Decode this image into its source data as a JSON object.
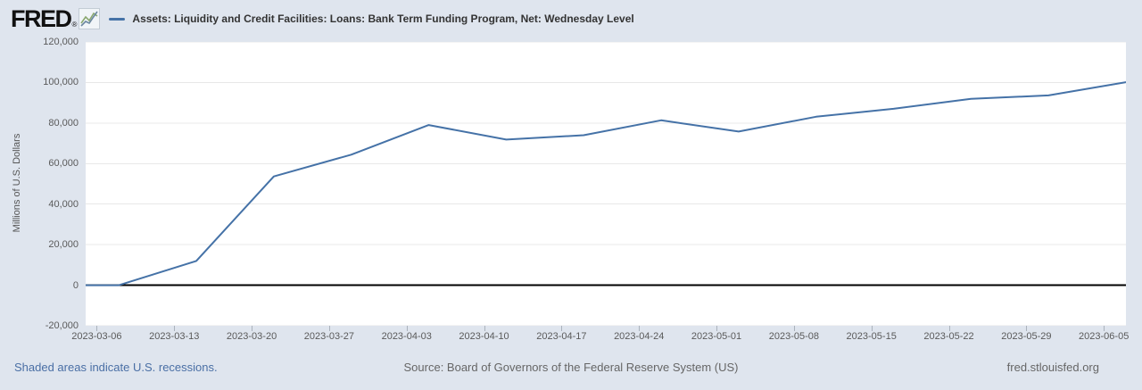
{
  "header": {
    "logo_text": "FRED",
    "logo_registered": "®",
    "legend_label": "Assets: Liquidity and Credit Facilities: Loans: Bank Term Funding Program, Net: Wednesday Level"
  },
  "footer": {
    "recessions_note": "Shaded areas indicate U.S. recessions.",
    "source": "Source: Board of Governors of the Federal Reserve System (US)",
    "domain": "fred.stlouisfed.org"
  },
  "colors": {
    "background": "#dfe5ee",
    "plot_background": "#ffffff",
    "series_line": "#4572a7",
    "gridline": "#e8e8e8",
    "zero_line": "#000000",
    "tick_text": "#5a5a5a",
    "footer_link": "#4a6fa5"
  },
  "chart_data": {
    "type": "line",
    "title": "Assets: Liquidity and Credit Facilities: Loans: Bank Term Funding Program, Net: Wednesday Level",
    "xlabel": "",
    "ylabel": "Millions of U.S. Dollars",
    "ylim": [
      -20000,
      120000
    ],
    "y_ticks": [
      120000,
      100000,
      80000,
      60000,
      40000,
      20000,
      0,
      -20000
    ],
    "y_tick_labels": [
      "120,000",
      "100,000",
      "80,000",
      "60,000",
      "40,000",
      "20,000",
      "0",
      "-20,000"
    ],
    "x_range": [
      "2023-03-05",
      "2023-06-07"
    ],
    "x_tick_labels": [
      "2023-03-06",
      "2023-03-13",
      "2023-03-20",
      "2023-03-27",
      "2023-04-03",
      "2023-04-10",
      "2023-04-17",
      "2023-04-24",
      "2023-05-01",
      "2023-05-08",
      "2023-05-15",
      "2023-05-22",
      "2023-05-29",
      "2023-06-05"
    ],
    "grid": "horizontal",
    "zero_line": true,
    "legend_position": "top",
    "series": [
      {
        "name": "Assets: Liquidity and Credit Facilities: Loans: Bank Term Funding Program, Net: Wednesday Level",
        "color": "#4572a7",
        "points": [
          [
            "2023-03-01",
            0
          ],
          [
            "2023-03-08",
            0
          ],
          [
            "2023-03-15",
            11943
          ],
          [
            "2023-03-22",
            53669
          ],
          [
            "2023-03-29",
            64403
          ],
          [
            "2023-04-05",
            79021
          ],
          [
            "2023-04-12",
            71837
          ],
          [
            "2023-04-19",
            73982
          ],
          [
            "2023-04-26",
            81327
          ],
          [
            "2023-05-03",
            75778
          ],
          [
            "2023-05-10",
            83101
          ],
          [
            "2023-05-17",
            87006
          ],
          [
            "2023-05-24",
            91907
          ],
          [
            "2023-05-31",
            93615
          ],
          [
            "2023-06-07",
            100161
          ]
        ]
      }
    ]
  }
}
